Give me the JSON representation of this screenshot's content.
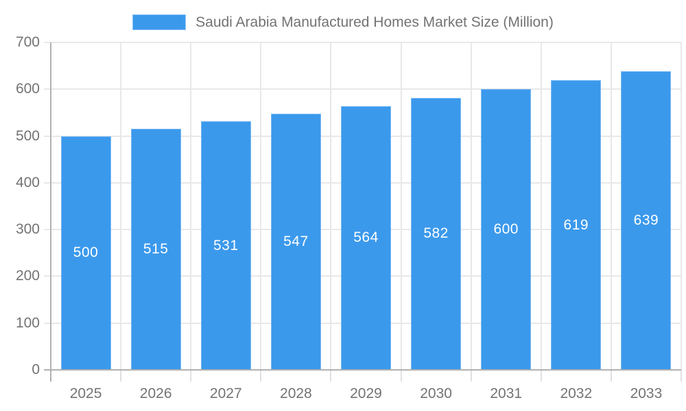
{
  "legend": {
    "label": "Saudi Arabia Manufactured Homes Market Size (Million)"
  },
  "chart_data": {
    "type": "bar",
    "title": "Saudi Arabia Manufactured Homes Market Size (Million)",
    "categories": [
      "2025",
      "2026",
      "2027",
      "2028",
      "2029",
      "2030",
      "2031",
      "2032",
      "2033"
    ],
    "values": [
      500,
      515,
      531,
      547,
      564,
      582,
      600,
      619,
      639
    ],
    "xlabel": "",
    "ylabel": "",
    "ylim": [
      0,
      700
    ],
    "yticks": [
      0,
      100,
      200,
      300,
      400,
      500,
      600,
      700
    ],
    "grid": true,
    "legend_position": "top-center",
    "colors": {
      "bar_fill": "#3b99ec",
      "bar_edge": "#79b8f3",
      "value_label": "#ffffff",
      "axis_text": "#737373",
      "axis_line": "#b1b1b1",
      "grid_line": "#e8e8e8",
      "background": "#ffffff"
    }
  }
}
